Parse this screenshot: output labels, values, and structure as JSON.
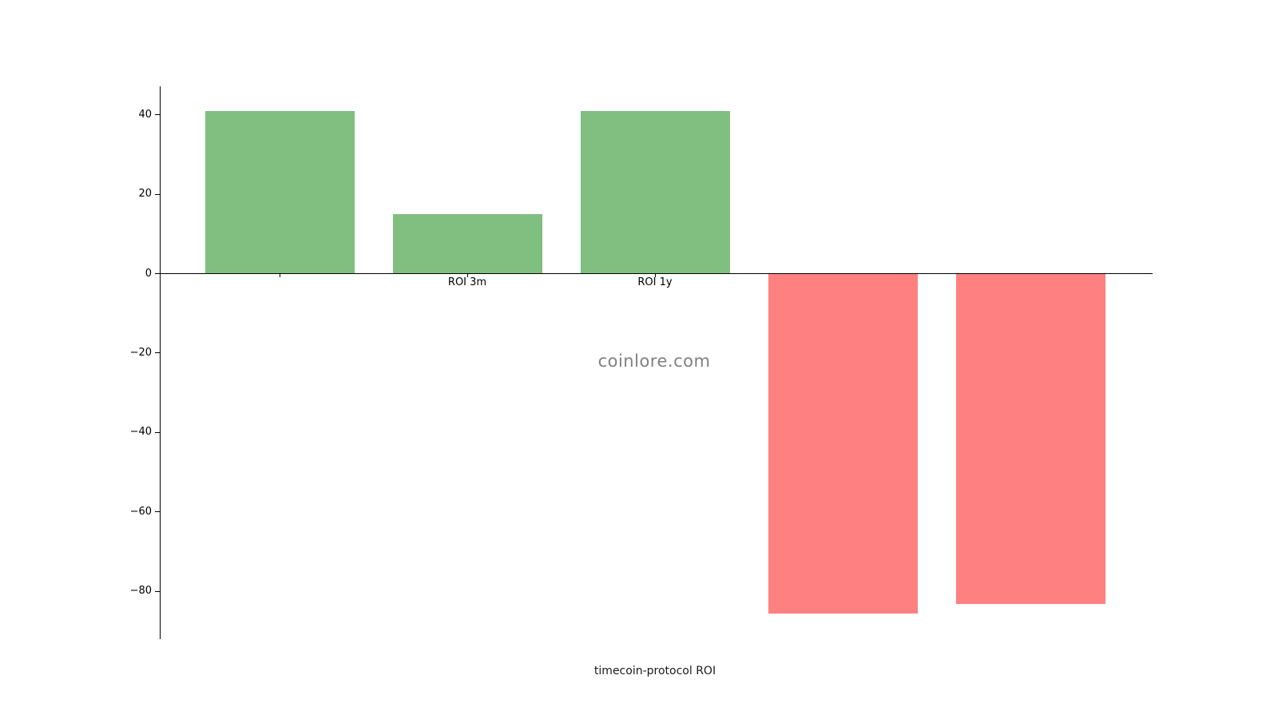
{
  "watermark": {
    "text": "coinlore.com",
    "color": "#808080"
  },
  "footer_title": {
    "text": "timecoin-protocol ROI",
    "color": "#1a1a1a"
  },
  "chart_data": {
    "type": "bar",
    "title": "timecoin-protocol ROI",
    "categories": [
      "",
      "ROI 3m",
      "ROI 1y",
      "",
      ""
    ],
    "values": [
      41,
      15,
      41,
      -85.5,
      -83
    ],
    "xlabel": "",
    "ylabel": "",
    "yticks": [
      40,
      20,
      0,
      -20,
      -40,
      -60,
      -80
    ],
    "ytick_labels": [
      "40",
      "20",
      "0",
      "−20",
      "−40",
      "−60",
      "−80"
    ],
    "ylim": [
      -92,
      47.2
    ],
    "grid": false,
    "legend": "none",
    "background": "#ffffff",
    "colors": {
      "positive": "#80bf80",
      "negative": "#ff8080",
      "axis": "#000000",
      "tick_label": "#000000"
    }
  }
}
